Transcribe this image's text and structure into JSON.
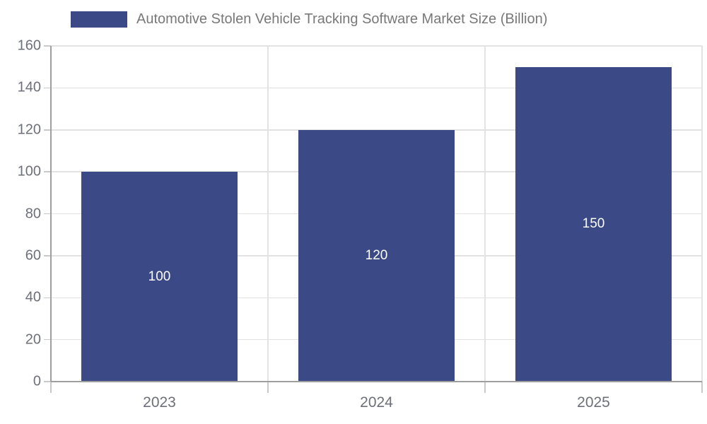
{
  "legend": {
    "label": "Automotive Stolen Vehicle Tracking Software Market Size (Billion)"
  },
  "chart_data": {
    "type": "bar",
    "title": "",
    "xlabel": "",
    "ylabel": "",
    "categories": [
      "2023",
      "2024",
      "2025"
    ],
    "series": [
      {
        "name": "Automotive Stolen Vehicle Tracking Software Market Size (Billion)",
        "values": [
          100,
          120,
          150
        ]
      }
    ],
    "bar_value_labels": [
      "100",
      "120",
      "150"
    ],
    "ylim": [
      0,
      160
    ],
    "y_ticks": [
      0,
      20,
      40,
      60,
      80,
      100,
      120,
      140,
      160
    ],
    "grid": true,
    "legend_position": "top-left",
    "colors": {
      "bar": "#3b4a87",
      "bar_label": "#ffffff",
      "axis_line": "#9e9e9e",
      "grid_line": "#e2e2e2",
      "tick": "#c9c9c9",
      "tick_text": "#6e7079",
      "legend_text": "#787878",
      "background": "#ffffff"
    }
  }
}
